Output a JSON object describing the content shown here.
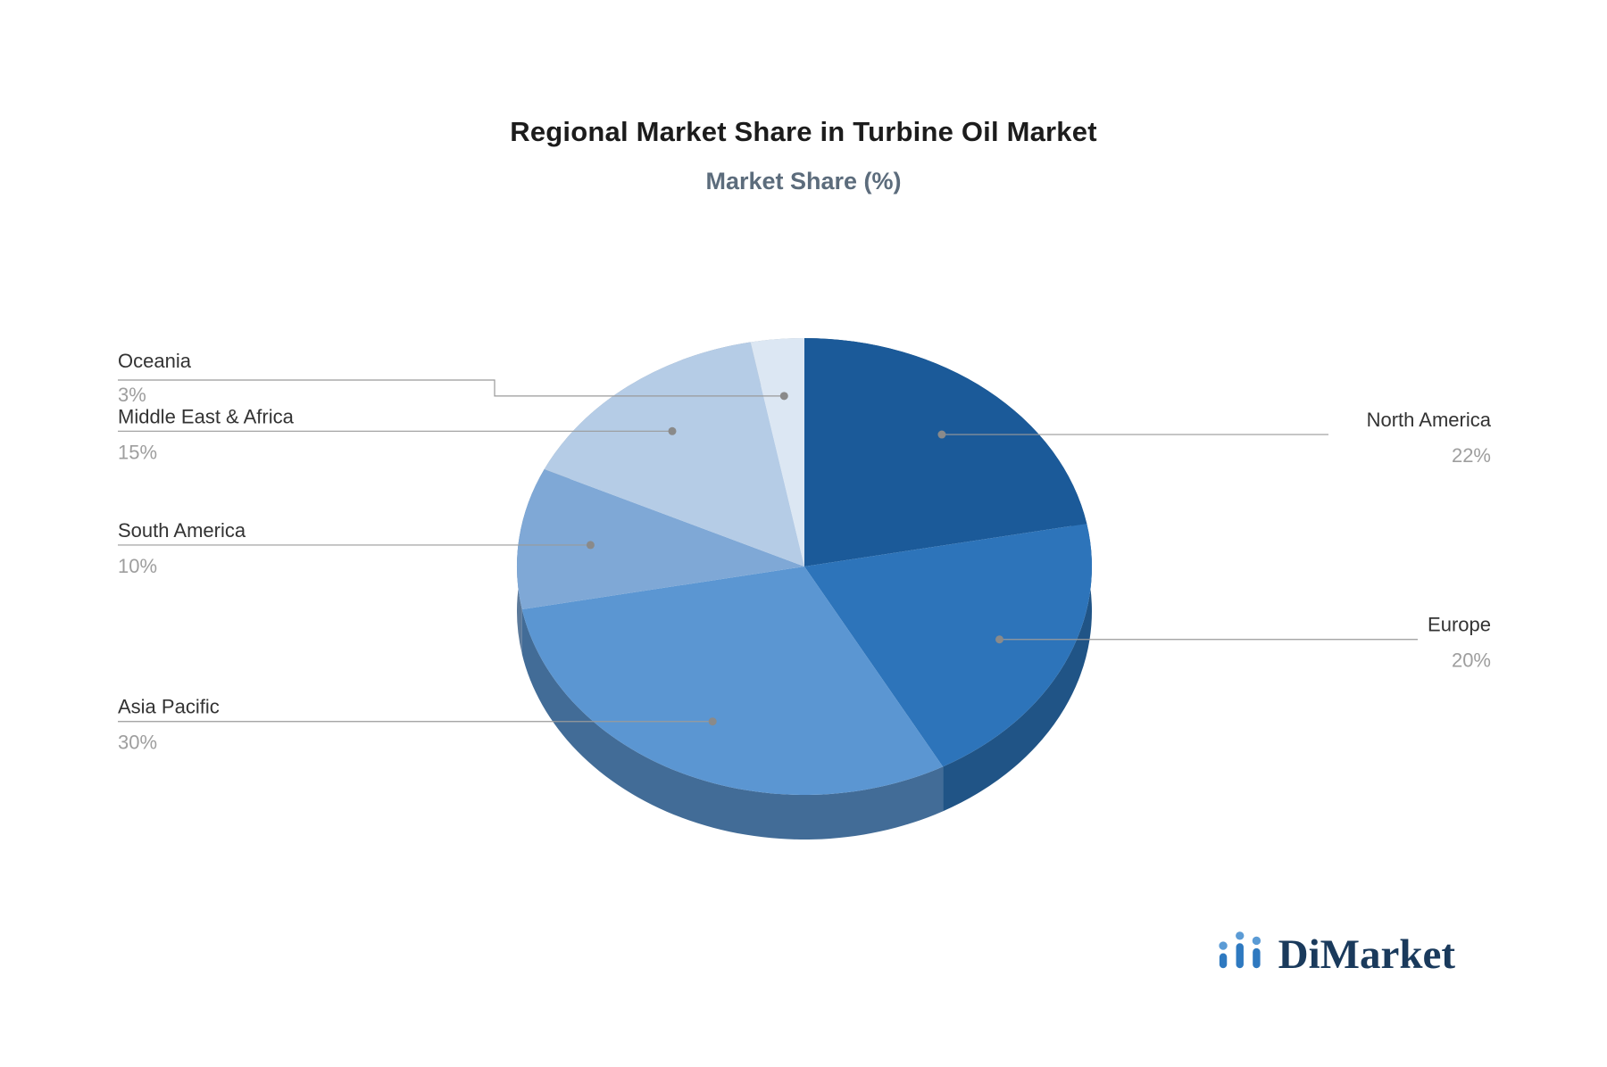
{
  "chart_data": {
    "type": "pie",
    "title": "Regional Market Share in Turbine Oil Market",
    "subtitle": "Market Share (%)",
    "unit": "%",
    "direction": "clockwise",
    "start_angle_deg": 0,
    "slices": [
      {
        "label": "North America",
        "value": 22,
        "color": "#1b5a99"
      },
      {
        "label": "Europe",
        "value": 20,
        "color": "#2d74ba"
      },
      {
        "label": "Asia Pacific",
        "value": 30,
        "color": "#5b96d2"
      },
      {
        "label": "South America",
        "value": 10,
        "color": "#7fa8d6"
      },
      {
        "label": "Middle East & Africa",
        "value": 15,
        "color": "#b5cce6"
      },
      {
        "label": "Oceania",
        "value": 3,
        "color": "#dce7f3"
      }
    ],
    "label_color": "#333333",
    "percent_color": "#9e9e9e",
    "leader_line_color": "#9a9a9a",
    "leader_dot_color": "#8a8a8a",
    "effect": "3d-depth"
  },
  "branding": {
    "name": "DiMarket",
    "logo_icon": "bar-chart-icon",
    "text_color": "#1a3a5c",
    "icon_color": "#2e79c0",
    "icon_dot_color": "#5b9bd5"
  }
}
